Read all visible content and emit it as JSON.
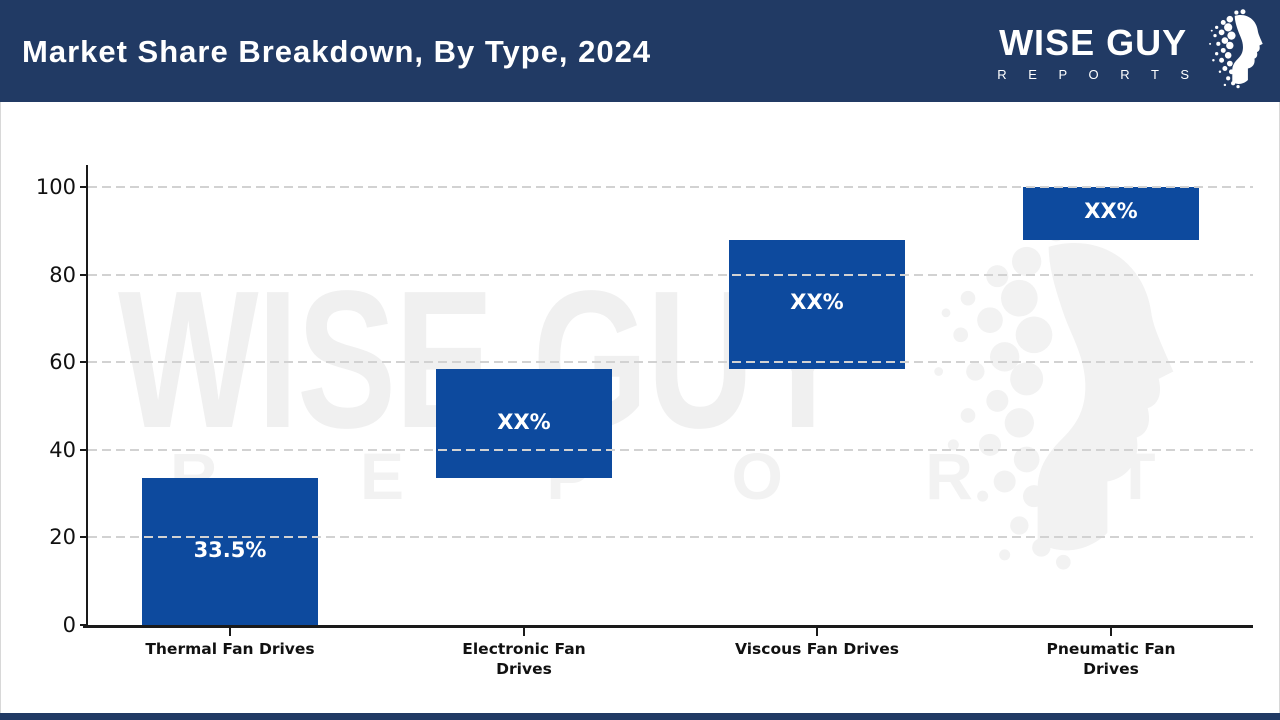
{
  "header": {
    "title": "Market Share Breakdown, By Type, 2024",
    "logo": {
      "wordmark": "WISE GUY",
      "subtext": "R E P O R T S"
    }
  },
  "watermark": {
    "line1": "WISE GUY",
    "line2": "R E P O R T S"
  },
  "colors": {
    "header_bg": "#213a64",
    "footer_bg": "#213a64",
    "bar": "#0d4a9e",
    "bar_label": "#ffffff",
    "gridline": "#d2d2d2",
    "axis": "#1a1a1a",
    "watermark": "#f0f0f0"
  },
  "chart_data": {
    "type": "bar",
    "subtype": "waterfall",
    "title": "Market Share Breakdown, By Type, 2024",
    "categories": [
      "Thermal Fan Drives",
      "Electronic Fan Drives",
      "Viscous Fan Drives",
      "Pneumatic Fan Drives"
    ],
    "category_display": [
      "Thermal Fan Drives",
      "Electronic Fan\nDrives",
      "Viscous Fan Drives",
      "Pneumatic Fan\nDrives"
    ],
    "segments": [
      {
        "category": "Thermal Fan Drives",
        "start": 0,
        "end": 33.5,
        "label": "33.5%"
      },
      {
        "category": "Electronic Fan Drives",
        "start": 33.5,
        "end": 58.5,
        "label": "XX%"
      },
      {
        "category": "Viscous Fan Drives",
        "start": 58.5,
        "end": 88,
        "label": "XX%"
      },
      {
        "category": "Pneumatic Fan Drives",
        "start": 88,
        "end": 100,
        "label": "XX%"
      }
    ],
    "xlabel": "",
    "ylabel": "",
    "ylim": [
      0,
      100
    ],
    "yticks": [
      0,
      20,
      40,
      60,
      80,
      100
    ],
    "grid": "horizontal-dashed",
    "legend": "none"
  }
}
